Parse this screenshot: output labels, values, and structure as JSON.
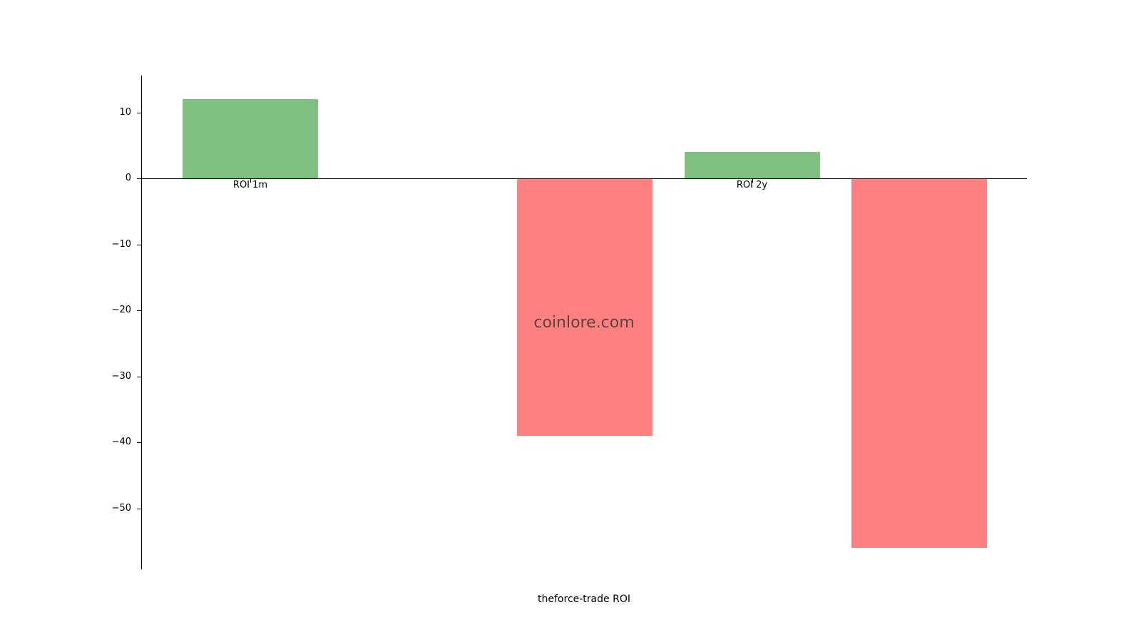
{
  "chart_data": {
    "type": "bar",
    "title": "theforce-trade ROI",
    "watermark": "coinlore.com",
    "bars": [
      {
        "pos": 0,
        "value": 12,
        "sign": "positive",
        "tick_label": "ROI 1m"
      },
      {
        "pos": 2,
        "value": -39,
        "sign": "negative",
        "tick_label": ""
      },
      {
        "pos": 3,
        "value": 4,
        "sign": "positive",
        "tick_label": "ROI 2y"
      },
      {
        "pos": 4,
        "value": -56,
        "sign": "negative",
        "tick_label": ""
      }
    ],
    "x_ticks": [
      {
        "pos": 0,
        "label": "ROI 1m"
      },
      {
        "pos": 3,
        "label": "ROI 2y"
      }
    ],
    "y_ticks": [
      {
        "value": 10,
        "label": "10"
      },
      {
        "value": 0,
        "label": "0"
      },
      {
        "value": -10,
        "label": "−10"
      },
      {
        "value": -20,
        "label": "−20"
      },
      {
        "value": -30,
        "label": "−30"
      },
      {
        "value": -40,
        "label": "−40"
      },
      {
        "value": -50,
        "label": "−50"
      }
    ],
    "ylim": [
      -59.2,
      15.6
    ],
    "grid": false,
    "legend": false,
    "colors": {
      "positive": "#80c080",
      "negative": "#ff8080",
      "axis": "#000000",
      "watermark": "rgba(51,51,51,0.8)"
    }
  }
}
